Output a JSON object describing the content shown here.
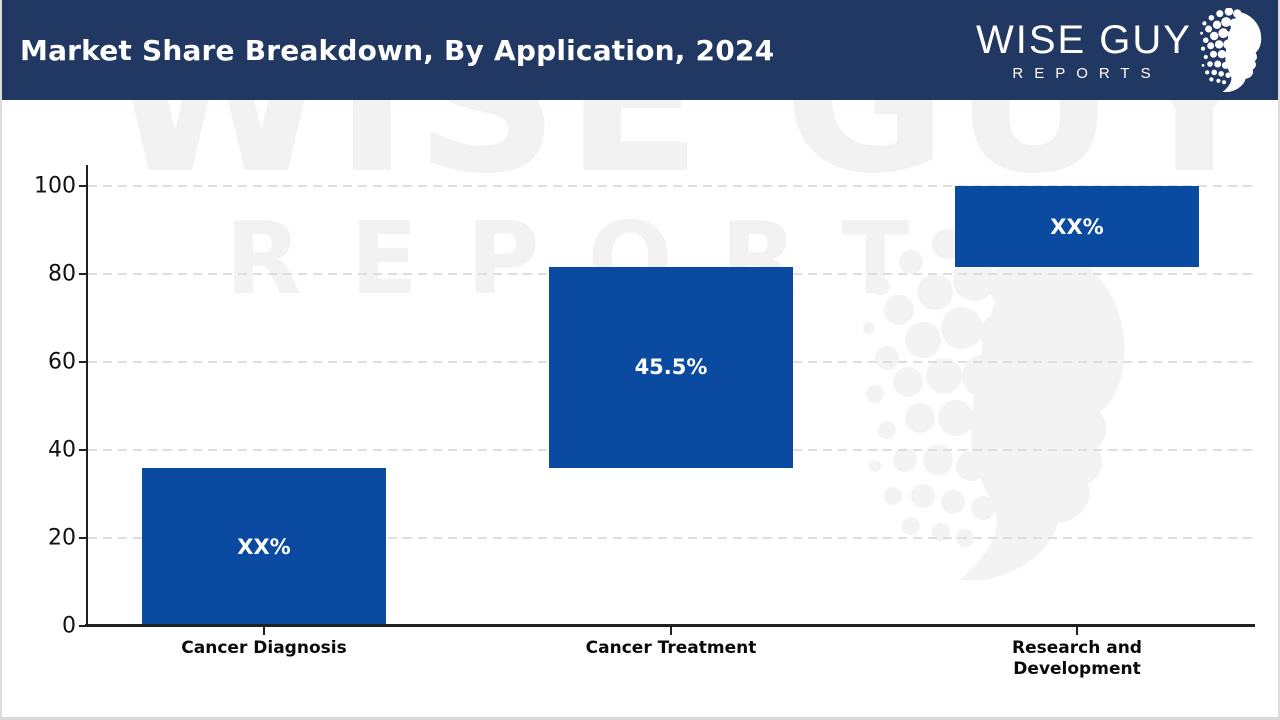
{
  "header": {
    "title": "Market Share Breakdown, By Application, 2024",
    "logo": {
      "line1": "WISE GUY",
      "line2": "REPORTS"
    }
  },
  "watermark": {
    "line1": "WISE GUY",
    "line2": "REPORTS"
  },
  "colors": {
    "header_bg": "#213863",
    "bar": "#0a4aa0",
    "grid": "#dedede",
    "axis": "#1f1f1f",
    "watermark": "#f2f2f2",
    "bar_label": "#ffffff"
  },
  "chart_data": {
    "type": "bar",
    "subtype": "waterfall",
    "title": "Market Share Breakdown, By Application, 2024",
    "categories": [
      "Cancer Diagnosis",
      "Cancer Treatment",
      "Research and Development"
    ],
    "segments": [
      {
        "category": "Cancer Diagnosis",
        "start": 0,
        "end": 36,
        "value_label": "XX%"
      },
      {
        "category": "Cancer Treatment",
        "start": 36,
        "end": 81.5,
        "value_label": "45.5%"
      },
      {
        "category": "Research and Development",
        "start": 81.5,
        "end": 100,
        "value_label": "XX%"
      }
    ],
    "xlabel": "",
    "ylabel": "",
    "ylim": [
      0,
      100
    ],
    "yticks": [
      0,
      20,
      40,
      60,
      80,
      100
    ],
    "grid": "horizontal dashed",
    "legend": "none"
  }
}
